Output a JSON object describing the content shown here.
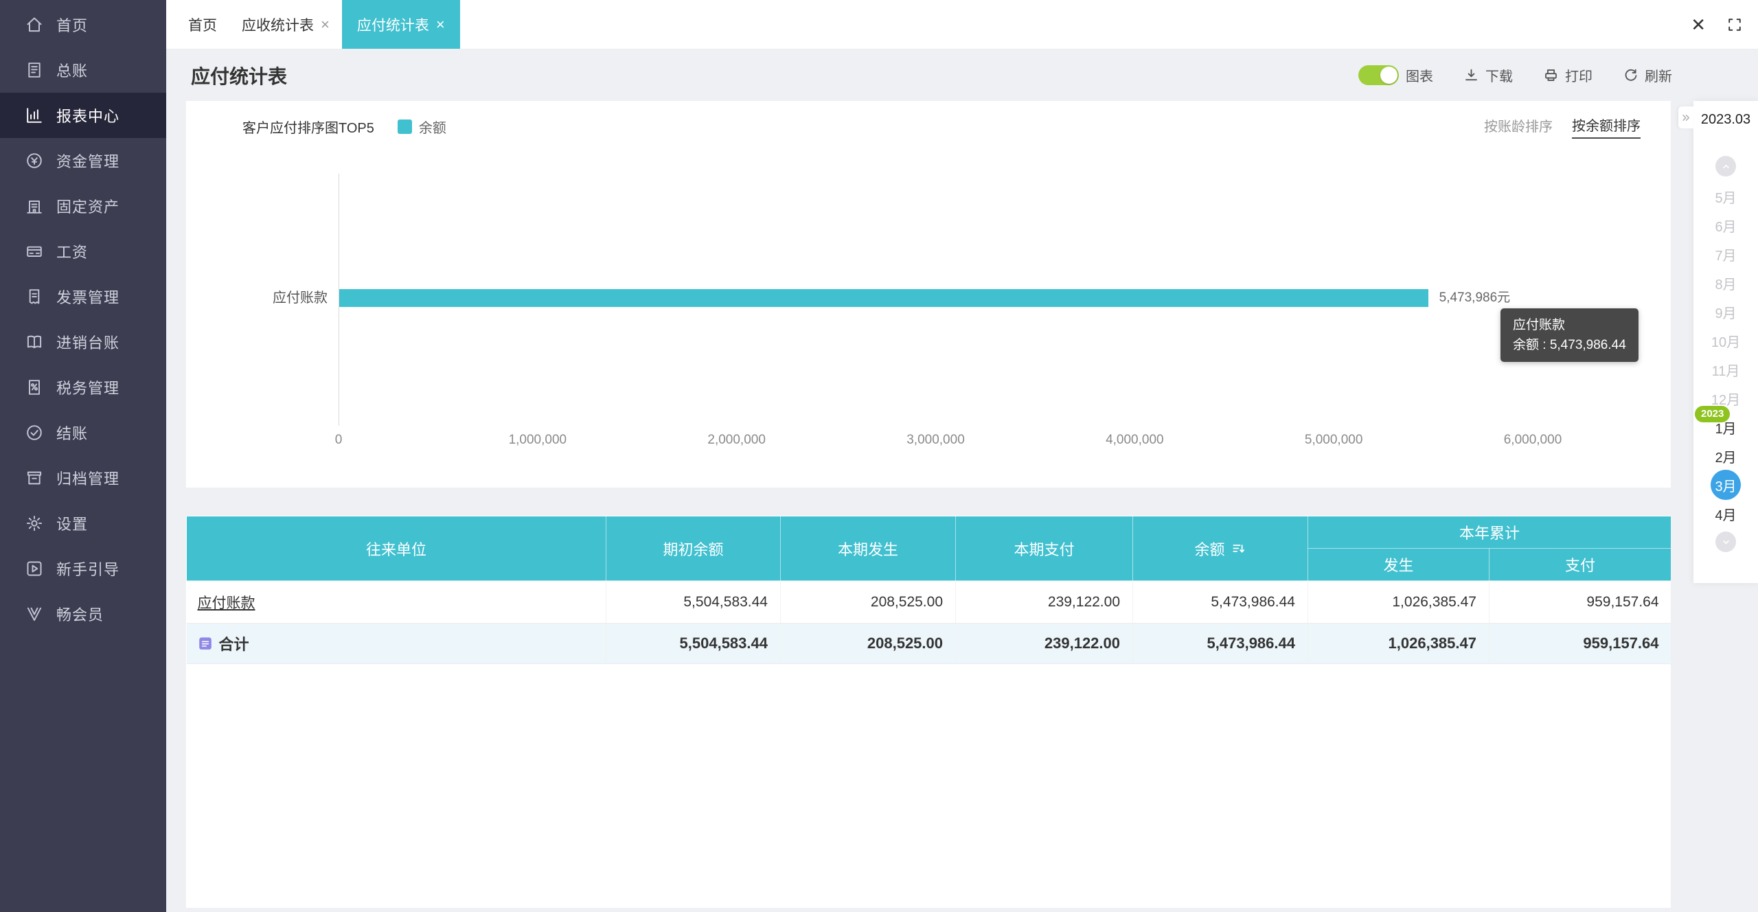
{
  "colors": {
    "accent_teal": "#41c0cf",
    "sidebar_bg": "#3d3d52",
    "toggle_green": "#9ecf3a",
    "selected_month_blue": "#3ba3e6",
    "year_badge_green": "#8fc31f",
    "tooltip_bg": "#3e3e3e"
  },
  "icons": {
    "sidebar": [
      "home-icon",
      "ledger-icon",
      "report-icon",
      "fund-icon",
      "asset-icon",
      "payroll-icon",
      "invoice-icon",
      "trade-ledger-icon",
      "tax-icon",
      "closing-icon",
      "archive-icon",
      "gear-icon",
      "guide-icon",
      "member-icon"
    ],
    "toolbar": [
      "download-icon",
      "print-icon",
      "refresh-icon"
    ],
    "window": [
      "close-icon",
      "expand-icon"
    ],
    "other": [
      "sort-icon",
      "total-icon",
      "collapse-icon",
      "chevron-up-icon",
      "chevron-down-icon"
    ]
  },
  "sidebar": {
    "items": [
      {
        "label": "首页"
      },
      {
        "label": "总账"
      },
      {
        "label": "报表中心"
      },
      {
        "label": "资金管理"
      },
      {
        "label": "固定资产"
      },
      {
        "label": "工资"
      },
      {
        "label": "发票管理"
      },
      {
        "label": "进销台账"
      },
      {
        "label": "税务管理"
      },
      {
        "label": "结账"
      },
      {
        "label": "归档管理"
      },
      {
        "label": "设置"
      },
      {
        "label": "新手引导"
      },
      {
        "label": "畅会员"
      }
    ]
  },
  "tabbar": {
    "tabs": [
      {
        "label": "首页"
      },
      {
        "label": "应收统计表",
        "close": "×"
      },
      {
        "label": "应付统计表",
        "close": "×"
      }
    ]
  },
  "window": {
    "close": "✕"
  },
  "page": {
    "title": "应付统计表",
    "toolbar": {
      "chart_toggle": "图表",
      "download": "下载",
      "print": "打印",
      "refresh": "刷新"
    }
  },
  "chart_panel": {
    "title": "客户应付排序图TOP5",
    "legend": "余额",
    "sort_by_age": "按账龄排序",
    "sort_by_balance": "按余额排序",
    "category": "应付账款",
    "value_label": "5,473,986元",
    "tooltip_title": "应付账款",
    "tooltip_value": "余额 : 5,473,986.44",
    "x_ticks": [
      "0",
      "1,000,000",
      "2,000,000",
      "3,000,000",
      "4,000,000",
      "5,000,000",
      "6,000,000"
    ]
  },
  "chart_data": {
    "type": "bar",
    "orientation": "horizontal",
    "title": "客户应付排序图TOP5",
    "categories": [
      "应付账款"
    ],
    "series": [
      {
        "name": "余额",
        "values": [
          5473986.44
        ]
      }
    ],
    "xlim": [
      0,
      6000000
    ],
    "x_ticks": [
      0,
      1000000,
      2000000,
      3000000,
      4000000,
      5000000,
      6000000
    ],
    "bar_color": "#41c0cf",
    "grid": false,
    "legend_position": "top",
    "value_label": "5,473,986元"
  },
  "table": {
    "headers": {
      "unit": "往来单位",
      "opening": "期初余额",
      "occurred": "本期发生",
      "paid": "本期支付",
      "balance": "余额",
      "ytd": "本年累计",
      "ytd_occurred": "发生",
      "ytd_paid": "支付"
    },
    "rows": [
      {
        "unit": "应付账款",
        "opening": "5,504,583.44",
        "occurred": "208,525.00",
        "paid": "239,122.00",
        "balance": "5,473,986.44",
        "ytd_occurred": "1,026,385.47",
        "ytd_paid": "959,157.64"
      }
    ],
    "total": {
      "label": "合计",
      "opening": "5,504,583.44",
      "occurred": "208,525.00",
      "paid": "239,122.00",
      "balance": "5,473,986.44",
      "ytd_occurred": "1,026,385.47",
      "ytd_paid": "959,157.64"
    }
  },
  "month_panel": {
    "current_period": "2023.03",
    "year_badge": "2023",
    "months": [
      {
        "label": "5月",
        "state": "muted"
      },
      {
        "label": "6月",
        "state": "muted"
      },
      {
        "label": "7月",
        "state": "muted"
      },
      {
        "label": "8月",
        "state": "muted"
      },
      {
        "label": "9月",
        "state": "muted"
      },
      {
        "label": "10月",
        "state": "muted"
      },
      {
        "label": "11月",
        "state": "muted"
      },
      {
        "label": "12月",
        "state": "muted"
      },
      {
        "label": "1月",
        "state": "normal"
      },
      {
        "label": "2月",
        "state": "normal"
      },
      {
        "label": "3月",
        "state": "selected"
      },
      {
        "label": "4月",
        "state": "normal"
      }
    ]
  }
}
